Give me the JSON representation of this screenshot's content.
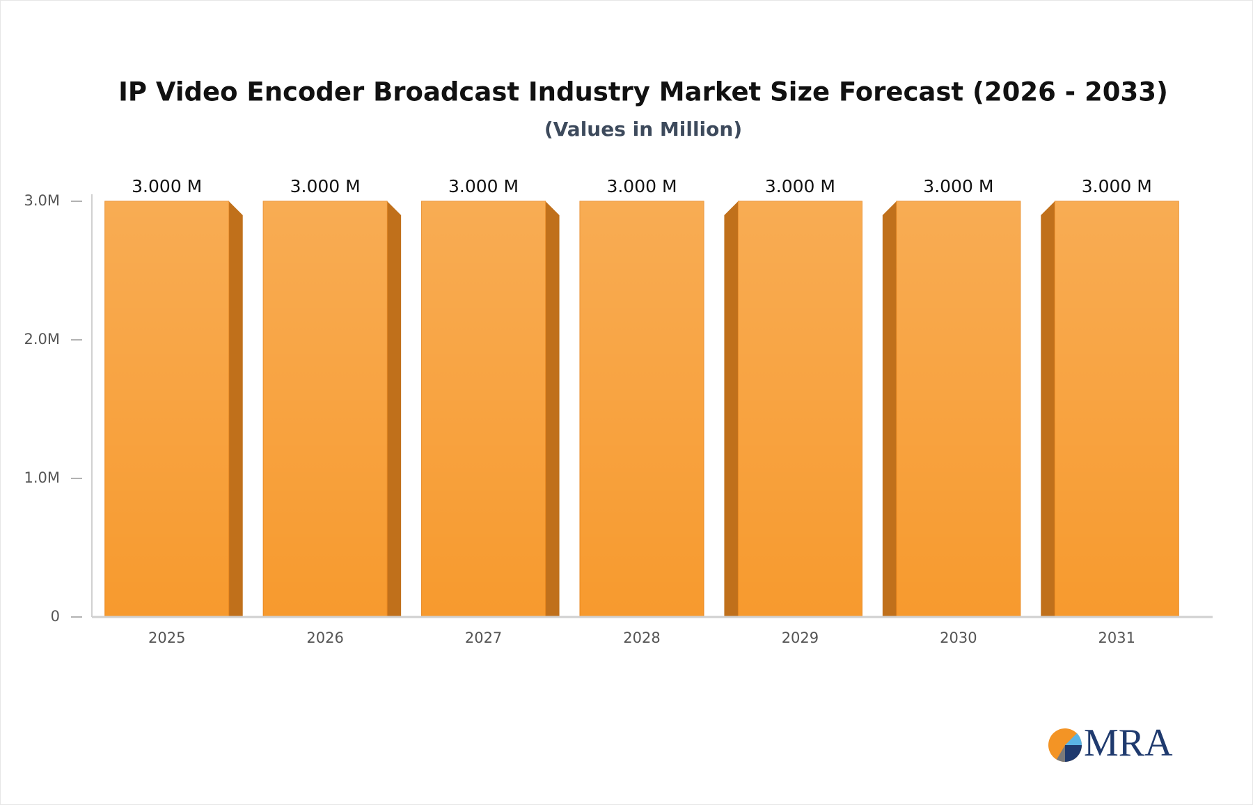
{
  "chart_data": {
    "type": "bar",
    "title": "IP Video Encoder Broadcast Industry Market Size Forecast (2026 - 2033)",
    "subtitle": "(Values in Million)",
    "categories": [
      "2025",
      "2026",
      "2027",
      "2028",
      "2029",
      "2030",
      "2031"
    ],
    "values": [
      3,
      3,
      3,
      3,
      3,
      3,
      3
    ],
    "value_labels": [
      "3.000 M",
      "3.000 M",
      "3.000 M",
      "3.000 M",
      "3.000 M",
      "3.000 M",
      "3.000 M"
    ],
    "color": "#f79a2e",
    "ylim": [
      0,
      3
    ],
    "yticks": [
      {
        "value": 0,
        "label": "0"
      },
      {
        "value": 1,
        "label": "1.0M"
      },
      {
        "value": 2,
        "label": "2.0M"
      },
      {
        "value": 3,
        "label": "3.0M"
      }
    ],
    "grid": false
  },
  "logo": {
    "text": "MRA"
  }
}
